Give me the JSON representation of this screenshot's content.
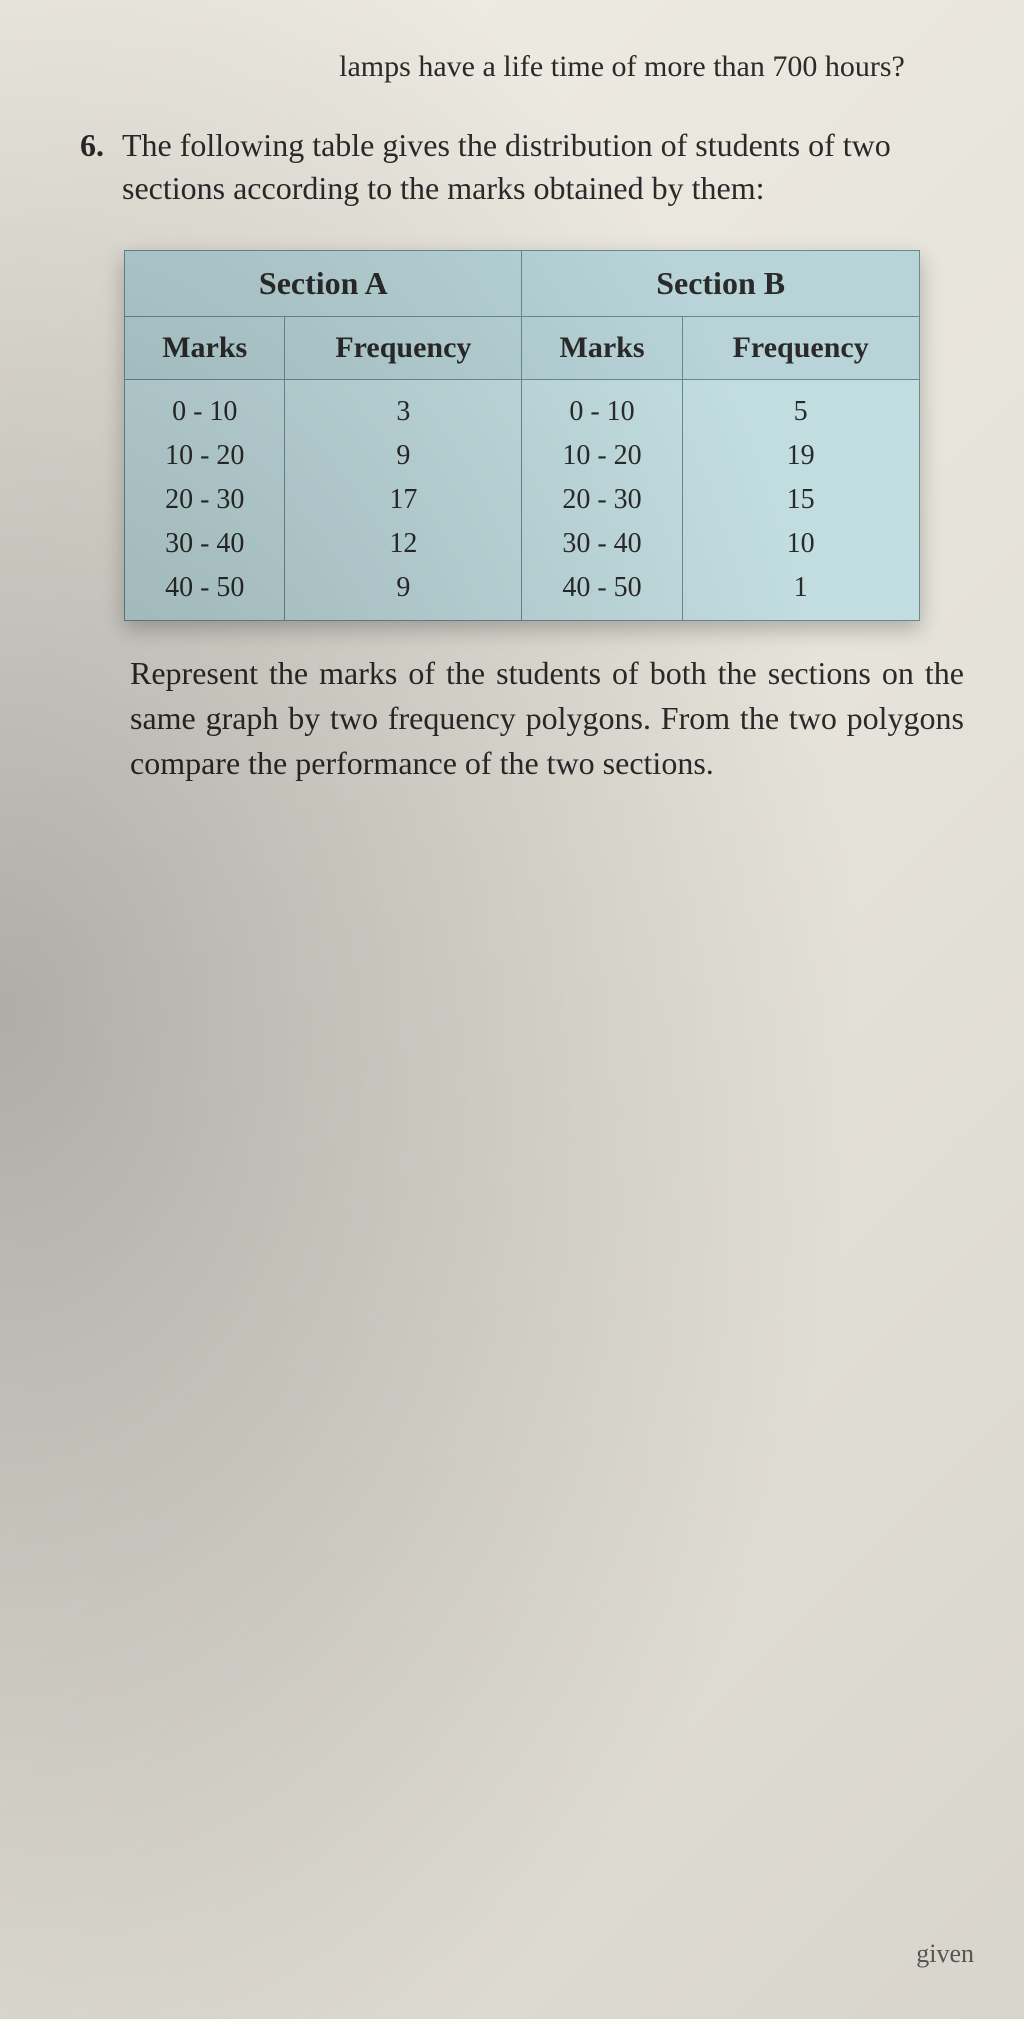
{
  "top_fragment": "lamps have a life time of more than 700 hours?",
  "question_number": "6.",
  "question_text": "The following table gives the distribution of students of two sections according to the marks obtained by them:",
  "table": {
    "section_a_label": "Section A",
    "section_b_label": "Section B",
    "col_marks": "Marks",
    "col_freq": "Frequency",
    "rows_a": [
      {
        "marks": "0 - 10",
        "freq": "3"
      },
      {
        "marks": "10 - 20",
        "freq": "9"
      },
      {
        "marks": "20 - 30",
        "freq": "17"
      },
      {
        "marks": "30 - 40",
        "freq": "12"
      },
      {
        "marks": "40 - 50",
        "freq": "9"
      }
    ],
    "rows_b": [
      {
        "marks": "0 - 10",
        "freq": "5"
      },
      {
        "marks": "10 - 20",
        "freq": "19"
      },
      {
        "marks": "20 - 30",
        "freq": "15"
      },
      {
        "marks": "30 - 40",
        "freq": "10"
      },
      {
        "marks": "40 - 50",
        "freq": "1"
      }
    ],
    "header_bg": "#b8d4d8",
    "body_bg": "#c2dde0",
    "border_color": "#6a8a90"
  },
  "instruction_text": "Represent the marks of the students of both the sections on the same graph by two frequency polygons. From the two polygons compare the performance of the two sections.",
  "footer_fragment": "given"
}
